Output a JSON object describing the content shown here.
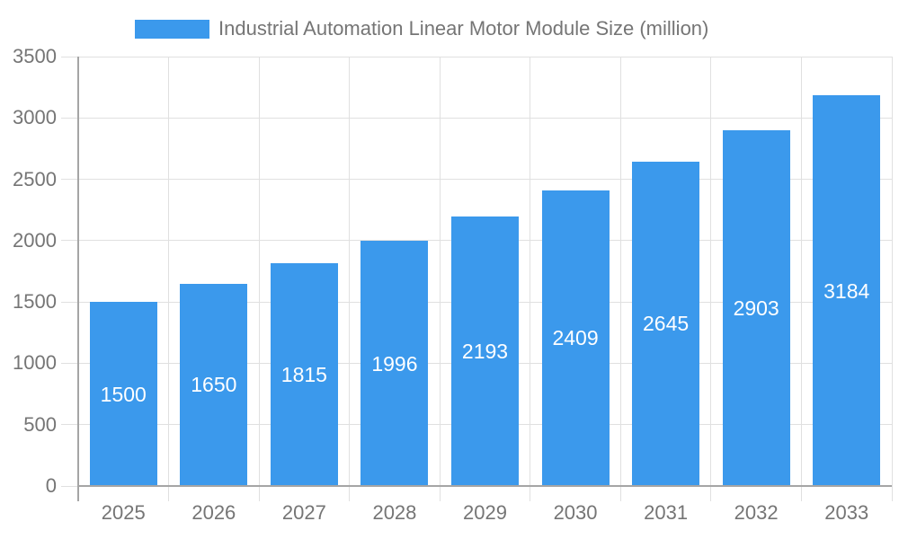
{
  "legend": {
    "label": "Industrial Automation Linear Motor Module Size (million)"
  },
  "chart_data": {
    "type": "bar",
    "title": "Industrial Automation Linear Motor Module Size (million)",
    "categories": [
      "2025",
      "2026",
      "2027",
      "2028",
      "2029",
      "2030",
      "2031",
      "2032",
      "2033"
    ],
    "values": [
      1500,
      1650,
      1815,
      1996,
      2193,
      2409,
      2645,
      2903,
      3184
    ],
    "xlabel": "",
    "ylabel": "",
    "ylim": [
      0,
      3500
    ],
    "yticks": [
      0,
      500,
      1000,
      1500,
      2000,
      2500,
      3000,
      3500
    ],
    "grid": true,
    "legend_position": "top",
    "bar_color": "#3b99ec",
    "value_label_color": "#ffffff"
  },
  "colors": {
    "background": "#ffffff",
    "gridline": "#e0e0e0",
    "axis": "#a5a5a5",
    "text": "#757575"
  }
}
